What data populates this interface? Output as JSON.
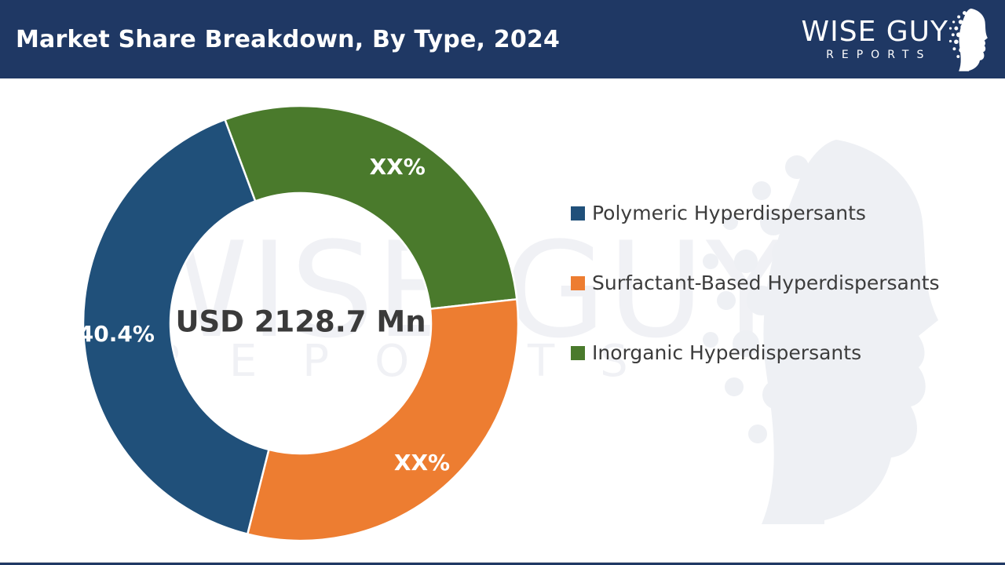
{
  "header": {
    "title": "Market Share Breakdown, By Type, 2024",
    "logo": {
      "line1": "WISE GUY",
      "line2": "REPORTS"
    }
  },
  "colors": {
    "header_bg": "#1f3864",
    "blue": "#20507a",
    "orange": "#ed7d31",
    "green": "#4a7a2c",
    "center_text": "#3a3a3a",
    "legend_text": "#3c3c3c",
    "watermark": "#f0f1f5",
    "slice_divider": "#ffffff"
  },
  "chart_data": {
    "type": "pie",
    "subtype": "donut",
    "title": "Market Share Breakdown, By Type, 2024",
    "center_label": "USD 2128.7 Mn",
    "total_value": 2128.7,
    "total_unit": "USD Mn",
    "start_angle_deg": -20.4,
    "donut_hole_ratio": 0.6,
    "legend_position": "right",
    "slices": [
      {
        "name": "Inorganic Hyperdispersants",
        "pct": 28.9,
        "display_label": "XX%",
        "color": "#4a7a2c"
      },
      {
        "name": "Surfactant-Based Hyperdispersants",
        "pct": 30.7,
        "display_label": "XX%",
        "color": "#ed7d31"
      },
      {
        "name": "Polymeric Hyperdispersants",
        "pct": 40.4,
        "display_label": "40.4%",
        "color": "#20507a"
      }
    ]
  },
  "legend": {
    "items": [
      {
        "label": "Polymeric Hyperdispersants",
        "color": "#20507a"
      },
      {
        "label": "Surfactant-Based Hyperdispersants",
        "color": "#ed7d31"
      },
      {
        "label": "Inorganic Hyperdispersants",
        "color": "#4a7a2c"
      }
    ]
  },
  "watermark": {
    "line1": "WISE GUY",
    "line2": "REPORTS"
  }
}
